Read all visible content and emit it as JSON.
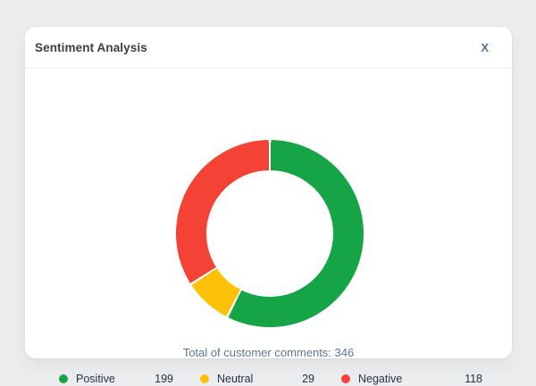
{
  "card": {
    "title": "Sentiment Analysis",
    "close_label": "X",
    "total_text": "Total of customer comments: 346"
  },
  "legend": [
    {
      "label": "Positive",
      "value": "199",
      "color": "#16a546"
    },
    {
      "label": "Neutral",
      "value": "29",
      "color": "#ffc107"
    },
    {
      "label": "Negative",
      "value": "118",
      "color": "#f44336"
    }
  ],
  "chart_data": {
    "type": "pie",
    "subtype": "donut",
    "title": "Sentiment Analysis",
    "categories": [
      "Positive",
      "Neutral",
      "Negative"
    ],
    "values": [
      199,
      29,
      118
    ],
    "colors": [
      "#16a546",
      "#ffc107",
      "#f44336"
    ],
    "total": 346,
    "annotation": "Total of customer comments: 346",
    "start_angle_deg": 0,
    "direction": "clockwise",
    "slice_gap_color": "#ffffff",
    "legend_position": "bottom"
  },
  "theme": {
    "page_background": "#ecedee",
    "card_background": "#ffffff",
    "title_color": "#443c37",
    "total_text_color": "#5d7795",
    "legend_text_color": "#25304a",
    "close_color": "#54708e",
    "divider_color": "#e9eef3"
  }
}
